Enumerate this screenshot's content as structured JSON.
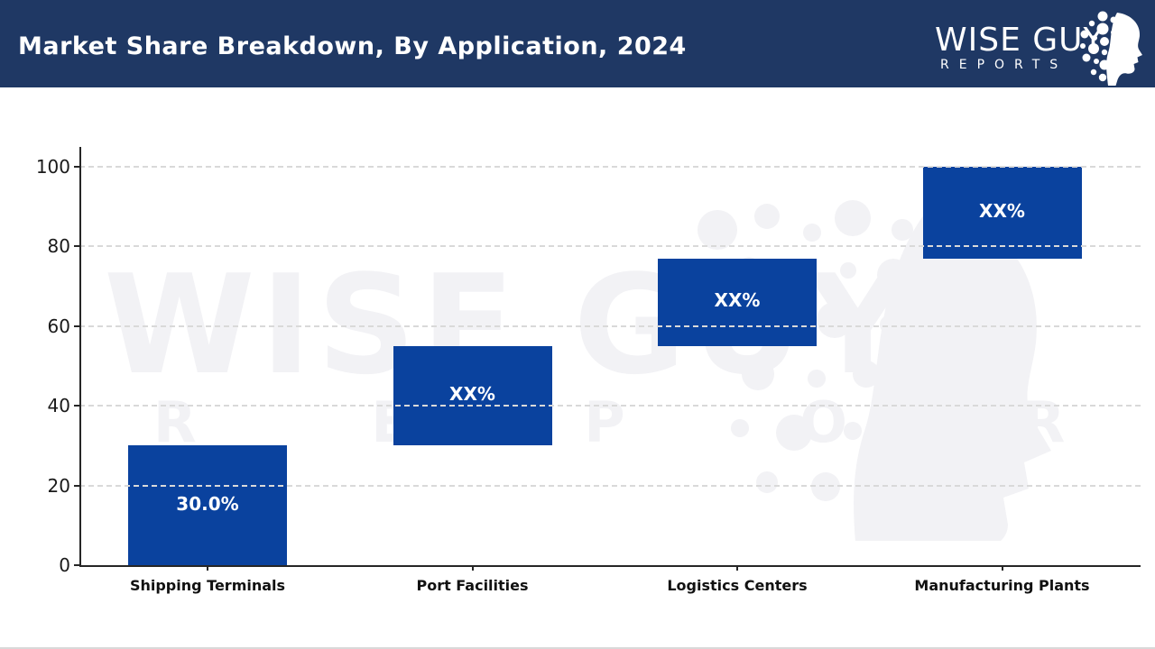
{
  "header": {
    "title": "Market Share Breakdown, By Application, 2024",
    "logo": {
      "line1": "WISE GUY",
      "line2": "REPORTS"
    }
  },
  "watermark": {
    "line1": "WISE GUY",
    "line2": "REPORTS"
  },
  "colors": {
    "header_bg": "#1F3864",
    "bar": "#0A429E",
    "grid": "#D9D9D9",
    "axis": "#262626",
    "bar_label_text": "#FFFFFF",
    "watermark": "#F2F2F5"
  },
  "chart_data": {
    "type": "bar",
    "subtype": "waterfall",
    "title": "Market Share Breakdown, By Application, 2024",
    "categories": [
      "Shipping Terminals",
      "Port Facilities",
      "Logistics Centers",
      "Manufacturing Plants"
    ],
    "series": [
      {
        "name": "Market Share (%)",
        "segment_values": [
          30.0,
          25.0,
          22.0,
          23.0
        ],
        "cumulative_start": [
          0,
          30,
          55,
          77
        ],
        "cumulative_end": [
          30,
          55,
          77,
          100
        ]
      }
    ],
    "bar_labels": [
      "30.0%",
      "XX%",
      "XX%",
      "XX%"
    ],
    "xlabel": "",
    "ylabel": "",
    "yticks": [
      0,
      20,
      40,
      60,
      80,
      100
    ],
    "ylim": [
      0,
      105
    ],
    "grid": "horizontal-dashed",
    "legend": "none",
    "bar_color": "#0A429E"
  }
}
